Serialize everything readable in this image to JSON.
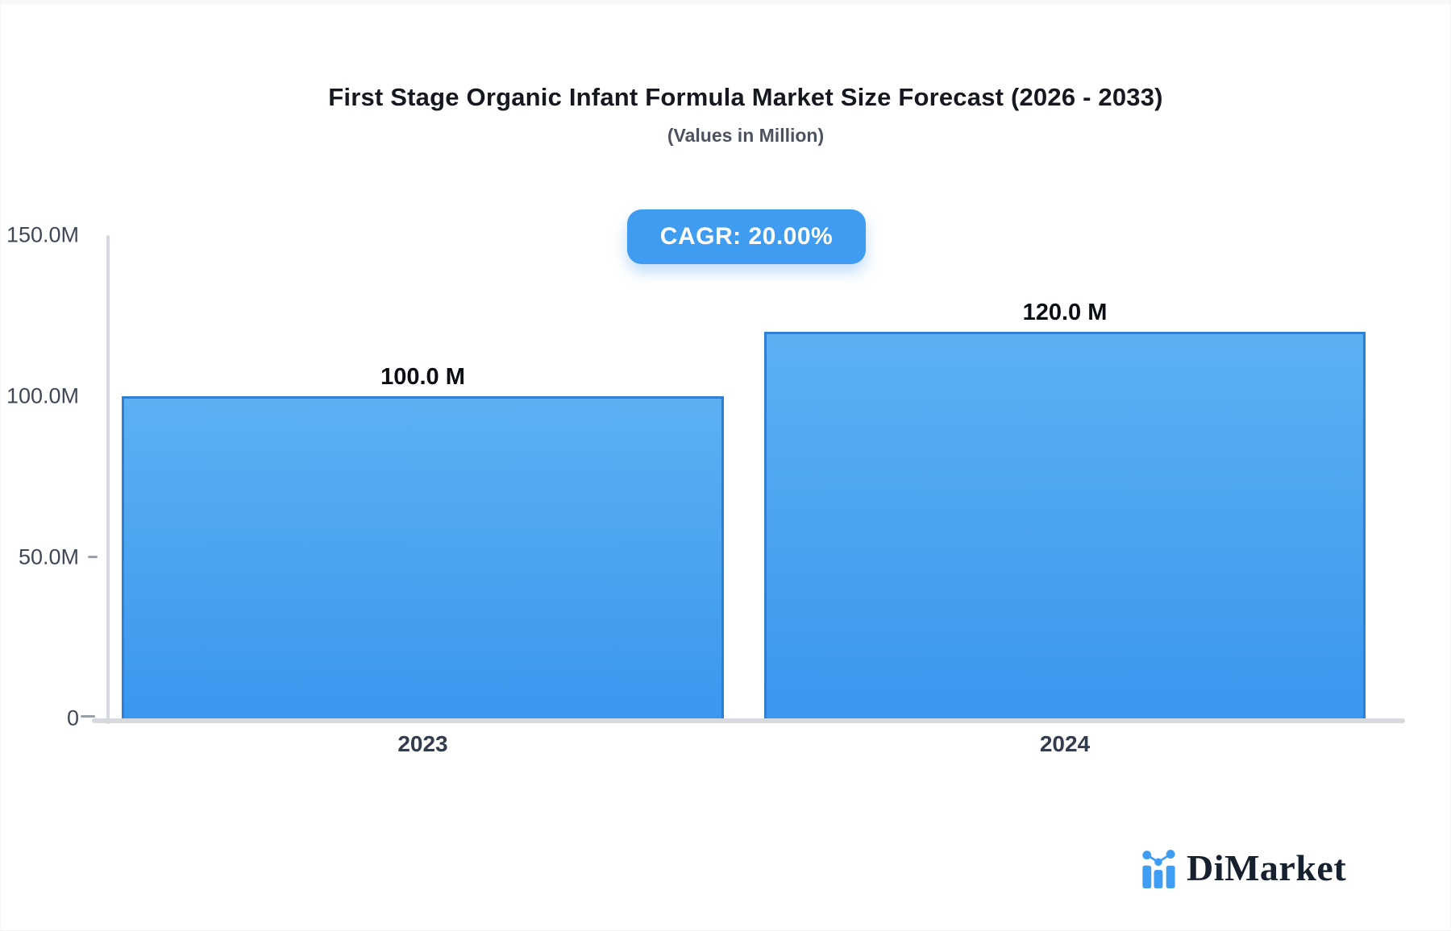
{
  "header": {
    "title": "First Stage Organic Infant Formula Market Size Forecast (2026 - 2033)",
    "subtitle": "(Values in Million)"
  },
  "cagr_badge": {
    "label": "CAGR: 20.00%"
  },
  "chart_data": {
    "type": "bar",
    "title": "First Stage Organic Infant Formula Market Size Forecast (2026 - 2033)",
    "subtitle": "(Values in Million)",
    "categories": [
      "2023",
      "2024"
    ],
    "values": [
      100.0,
      120.0
    ],
    "value_labels": [
      "100.0 M",
      "120.0 M"
    ],
    "unit": "Million",
    "cagr": "20.00%",
    "ylim": [
      0,
      150
    ],
    "yticks": [
      "150.0M",
      "100.0M",
      "50.0M",
      "0"
    ],
    "ytick_values": [
      150,
      100,
      50,
      0
    ],
    "grid": false,
    "legend": false,
    "bar_color_top": "#5db0f2",
    "bar_color_bottom": "#3a97ef",
    "bar_border_color": "#2d80d6",
    "axis_color": "#d6d9de"
  },
  "logo": {
    "text": "DiMarket"
  }
}
